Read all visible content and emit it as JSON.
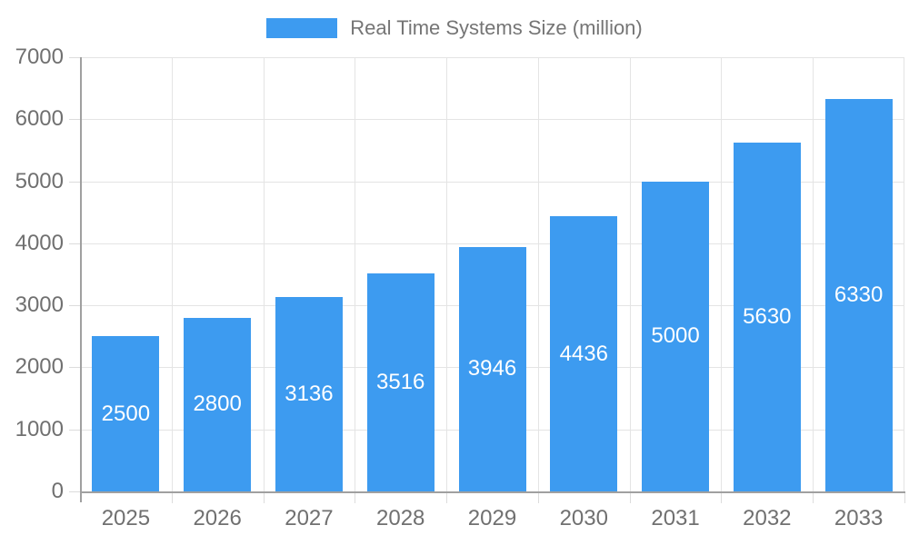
{
  "chart_data": {
    "type": "bar",
    "legend_label": "Real Time Systems Size (million)",
    "categories": [
      "2025",
      "2026",
      "2027",
      "2028",
      "2029",
      "2030",
      "2031",
      "2032",
      "2033"
    ],
    "values": [
      2500,
      2800,
      3136,
      3516,
      3946,
      4436,
      5000,
      5630,
      6330
    ],
    "bar_value_labels": [
      "2500",
      "2800",
      "3136",
      "3516",
      "3946",
      "4436",
      "5000",
      "5630",
      "6330"
    ],
    "xlabel": "",
    "ylabel": "",
    "ylim": [
      0,
      7000
    ],
    "y_ticks": [
      0,
      1000,
      2000,
      3000,
      4000,
      5000,
      6000,
      7000
    ],
    "y_tick_labels": [
      "0",
      "1000",
      "2000",
      "3000",
      "4000",
      "5000",
      "6000",
      "7000"
    ],
    "grid": true,
    "legend_position": "top",
    "bar_color": "#3d9bf0",
    "bar_label_color": "#ffffff"
  },
  "colors": {
    "background": "#ffffff",
    "gridline": "#e4e4e4",
    "axis_line": "#a0a0a0",
    "tick": "#dcdcdc",
    "text": "#707070",
    "legend_text": "#757575"
  }
}
